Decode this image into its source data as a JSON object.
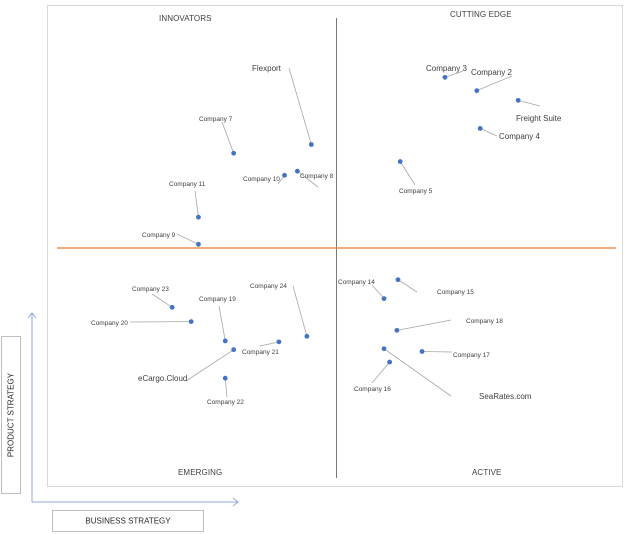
{
  "chart_data": {
    "type": "scatter",
    "quadrants": {
      "top_left": "INNOVATORS",
      "top_right": "CUTTING EDGE",
      "bottom_left": "EMERGING",
      "bottom_right": "ACTIVE"
    },
    "xlabel": "BUSINESS STRATEGY",
    "ylabel": "PRODUCT STRATEGY",
    "xlim": [
      0,
      100
    ],
    "ylim": [
      0,
      100
    ],
    "divider_color": "#ED7D31",
    "point_color": "#4472C4",
    "points": [
      {
        "name": "Flexport",
        "x": 45.5,
        "y": 72.5
      },
      {
        "name": "Company 3",
        "x": 69.4,
        "y": 87.1
      },
      {
        "name": "Company 2",
        "x": 75.1,
        "y": 84.2
      },
      {
        "name": "Freight Suite",
        "x": 82.5,
        "y": 82.1
      },
      {
        "name": "Company 4",
        "x": 75.7,
        "y": 76.0
      },
      {
        "name": "Company 7",
        "x": 31.6,
        "y": 70.6
      },
      {
        "name": "Company 10",
        "x": 40.7,
        "y": 65.8
      },
      {
        "name": "Company 8",
        "x": 43.0,
        "y": 66.7
      },
      {
        "name": "Company 5",
        "x": 61.4,
        "y": 68.8
      },
      {
        "name": "Company 11",
        "x": 25.3,
        "y": 56.7
      },
      {
        "name": "Company 9",
        "x": 25.3,
        "y": 50.8
      },
      {
        "name": "Company 23",
        "x": 20.6,
        "y": 37.1
      },
      {
        "name": "Company 20",
        "x": 24.0,
        "y": 34.0
      },
      {
        "name": "Company 19",
        "x": 30.1,
        "y": 29.8
      },
      {
        "name": "Company 24",
        "x": 44.7,
        "y": 30.8
      },
      {
        "name": "Company 21",
        "x": 39.7,
        "y": 29.6
      },
      {
        "name": "eCargo.Cloud",
        "x": 31.6,
        "y": 27.9
      },
      {
        "name": "Company 22",
        "x": 30.1,
        "y": 21.7
      },
      {
        "name": "Company 14",
        "x": 58.5,
        "y": 39.0
      },
      {
        "name": "Company 15",
        "x": 61.0,
        "y": 43.1
      },
      {
        "name": "Company 18",
        "x": 60.8,
        "y": 32.1
      },
      {
        "name": "Company 17",
        "x": 65.3,
        "y": 27.5
      },
      {
        "name": "SeaRates.com",
        "x": 58.5,
        "y": 28.1
      },
      {
        "name": "Company 16",
        "x": 59.5,
        "y": 25.2
      }
    ]
  }
}
